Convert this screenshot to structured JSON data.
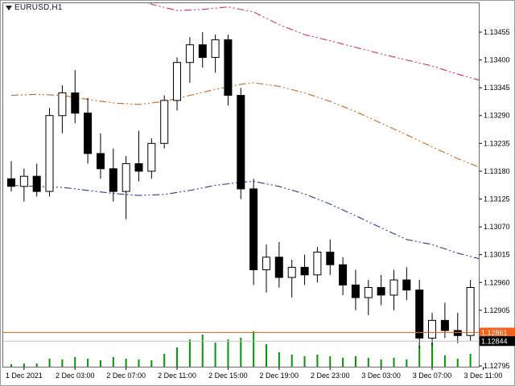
{
  "window": {
    "symbol_label": "EURUSD,H1"
  },
  "colors": {
    "background": "#ffffff",
    "frame": "#9a9a9a",
    "border": "#6b6b6b",
    "axis_text": "#000000",
    "candle_outline": "#000000",
    "bull_fill": "#ffffff",
    "bear_fill": "#000000",
    "volume": "#009900"
  },
  "chart_data": {
    "type": "candlestick",
    "symbol": "EURUSD",
    "timeframe": "H1",
    "title": "EURUSD,H1",
    "y_axis": {
      "min": 1.12795,
      "max": 1.13455,
      "tick_step": 0.00055,
      "labels": [
        "1.13455",
        "1.13400",
        "1.13345",
        "1.13290",
        "1.13235",
        "1.13180",
        "1.13125",
        "1.13070",
        "1.13015",
        "1.12960",
        "1.12905",
        "1.12850",
        "1.12795"
      ]
    },
    "x_axis": {
      "first_label_candle_index": 1,
      "candles_per_label": 4,
      "labels": [
        "1 Dec 2021",
        "2 Dec 03:00",
        "2 Dec 07:00",
        "2 Dec 11:00",
        "2 Dec 15:00",
        "2 Dec 19:00",
        "2 Dec 23:00",
        "3 Dec 03:00",
        "3 Dec 07:00",
        "3 Dec 11:00"
      ]
    },
    "candles": [
      [
        1.13165,
        1.132,
        1.1314,
        1.1315
      ],
      [
        1.1315,
        1.13185,
        1.1312,
        1.1317
      ],
      [
        1.1317,
        1.13195,
        1.1313,
        1.1314
      ],
      [
        1.1314,
        1.13305,
        1.1313,
        1.1329
      ],
      [
        1.1329,
        1.1335,
        1.13255,
        1.13335
      ],
      [
        1.13335,
        1.1338,
        1.13275,
        1.13295
      ],
      [
        1.13295,
        1.13325,
        1.13195,
        1.13215
      ],
      [
        1.13215,
        1.13255,
        1.13165,
        1.13185
      ],
      [
        1.13185,
        1.13225,
        1.1312,
        1.1314
      ],
      [
        1.1314,
        1.1321,
        1.13085,
        1.13195
      ],
      [
        1.13195,
        1.1326,
        1.1316,
        1.1318
      ],
      [
        1.1318,
        1.13245,
        1.13165,
        1.13235
      ],
      [
        1.13235,
        1.1333,
        1.13225,
        1.1332
      ],
      [
        1.1332,
        1.13405,
        1.133,
        1.13395
      ],
      [
        1.13395,
        1.13445,
        1.13355,
        1.1343
      ],
      [
        1.1343,
        1.13455,
        1.13385,
        1.13405
      ],
      [
        1.13405,
        1.1345,
        1.13375,
        1.1344
      ],
      [
        1.1344,
        1.1345,
        1.1331,
        1.1333
      ],
      [
        1.1333,
        1.13345,
        1.13125,
        1.13145
      ],
      [
        1.13145,
        1.13165,
        1.12955,
        1.12985
      ],
      [
        1.12985,
        1.13035,
        1.1294,
        1.1301
      ],
      [
        1.1301,
        1.1304,
        1.1295,
        1.1297
      ],
      [
        1.1297,
        1.13005,
        1.1293,
        1.1299
      ],
      [
        1.1299,
        1.13015,
        1.12955,
        1.12975
      ],
      [
        1.12975,
        1.1303,
        1.1296,
        1.1302
      ],
      [
        1.1302,
        1.13045,
        1.12975,
        1.12995
      ],
      [
        1.12995,
        1.1301,
        1.12935,
        1.12955
      ],
      [
        1.12955,
        1.12985,
        1.12905,
        1.1293
      ],
      [
        1.1293,
        1.12965,
        1.12895,
        1.1295
      ],
      [
        1.1295,
        1.12975,
        1.12915,
        1.12935
      ],
      [
        1.12935,
        1.12985,
        1.12905,
        1.12965
      ],
      [
        1.12965,
        1.1299,
        1.12925,
        1.12945
      ],
      [
        1.12945,
        1.12965,
        1.1283,
        1.1285
      ],
      [
        1.1285,
        1.129,
        1.12835,
        1.12885
      ],
      [
        1.12885,
        1.1292,
        1.1285,
        1.12865
      ],
      [
        1.12865,
        1.129,
        1.1284,
        1.12855
      ],
      [
        1.12855,
        1.12965,
        1.12845,
        1.1295
      ]
    ],
    "volumes": [
      3,
      4,
      4,
      10,
      9,
      12,
      10,
      8,
      12,
      10,
      9,
      8,
      16,
      24,
      34,
      40,
      30,
      34,
      36,
      44,
      28,
      18,
      15,
      13,
      15,
      13,
      11,
      13,
      11,
      9,
      11,
      9,
      26,
      30,
      14,
      10,
      16
    ],
    "ma_lines": [
      {
        "name": "band-upper-line",
        "color": "#cc3366",
        "points": [
          [
            10,
            1.1354
          ],
          [
            11,
            1.1351
          ],
          [
            13,
            1.13498
          ],
          [
            15,
            1.135
          ],
          [
            17,
            1.13505
          ],
          [
            19,
            1.13495
          ],
          [
            21,
            1.1347
          ],
          [
            23,
            1.1345
          ],
          [
            25,
            1.13438
          ],
          [
            27,
            1.13425
          ],
          [
            29,
            1.13412
          ],
          [
            31,
            1.134
          ],
          [
            33,
            1.13388
          ],
          [
            35,
            1.13372
          ],
          [
            37,
            1.13358
          ]
        ]
      },
      {
        "name": "band-middle-line",
        "color": "#c8681e",
        "points": [
          [
            0,
            1.1333
          ],
          [
            2,
            1.13332
          ],
          [
            4,
            1.1333
          ],
          [
            6,
            1.13322
          ],
          [
            8,
            1.13315
          ],
          [
            10,
            1.13312
          ],
          [
            12,
            1.13318
          ],
          [
            14,
            1.1333
          ],
          [
            16,
            1.13342
          ],
          [
            18,
            1.13352
          ],
          [
            19,
            1.13355
          ],
          [
            21,
            1.13348
          ],
          [
            23,
            1.13335
          ],
          [
            25,
            1.13318
          ],
          [
            27,
            1.13298
          ],
          [
            29,
            1.13275
          ],
          [
            31,
            1.13252
          ],
          [
            33,
            1.13228
          ],
          [
            35,
            1.13205
          ],
          [
            37,
            1.13185
          ]
        ]
      },
      {
        "name": "band-lower-line",
        "color": "#303a8c",
        "points": [
          [
            0,
            1.13152
          ],
          [
            2,
            1.1315
          ],
          [
            4,
            1.13148
          ],
          [
            6,
            1.13142
          ],
          [
            8,
            1.13136
          ],
          [
            10,
            1.13132
          ],
          [
            12,
            1.13134
          ],
          [
            14,
            1.13142
          ],
          [
            16,
            1.13152
          ],
          [
            18,
            1.13158
          ],
          [
            19,
            1.1316
          ],
          [
            21,
            1.1315
          ],
          [
            23,
            1.13135
          ],
          [
            25,
            1.13115
          ],
          [
            27,
            1.13092
          ],
          [
            29,
            1.13068
          ],
          [
            31,
            1.13045
          ],
          [
            33,
            1.13035
          ],
          [
            35,
            1.13018
          ],
          [
            37,
            1.13005
          ]
        ]
      }
    ],
    "price_lines": [
      {
        "name": "ask",
        "value": 1.12861,
        "label": "1.12861",
        "line_color": "#f4611c",
        "tag_bg": "#f4611c",
        "tag_fg": "#ffffff"
      },
      {
        "name": "bid",
        "value": 1.12844,
        "label": "1.12844",
        "line_color": "#c0c0c0",
        "tag_bg": "#000000",
        "tag_fg": "#ffffff"
      }
    ]
  }
}
